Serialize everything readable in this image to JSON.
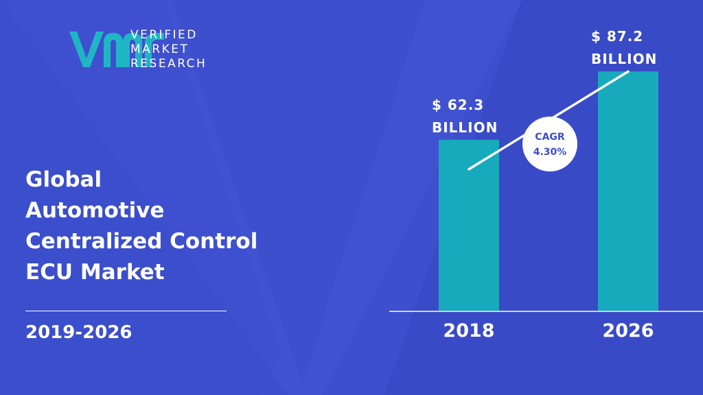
{
  "brand": {
    "name_lines": [
      "VERIFIED",
      "MARKET",
      "RESEARCH"
    ]
  },
  "title_lines": [
    "Global",
    "Automotive",
    "Centralized Control",
    "ECU Market"
  ],
  "period": "2019-2026",
  "colors": {
    "background": "#3d4fcc",
    "bar": "#17aabc",
    "logo": "#1fb6c4",
    "text": "#ffffff",
    "badge_text": "#3d4fcc"
  },
  "chart_data": {
    "type": "bar",
    "categories": [
      "2018",
      "2026"
    ],
    "values": [
      62.3,
      87.2
    ],
    "data_labels": [
      [
        "$ 62.3",
        "BILLION"
      ],
      [
        "$ 87.2",
        "BILLION"
      ]
    ],
    "title": "",
    "xlabel": "",
    "ylabel": "",
    "ylim": [
      0,
      100
    ],
    "grid": false,
    "annotation": {
      "lines": [
        "CAGR",
        "4.30%"
      ]
    }
  }
}
